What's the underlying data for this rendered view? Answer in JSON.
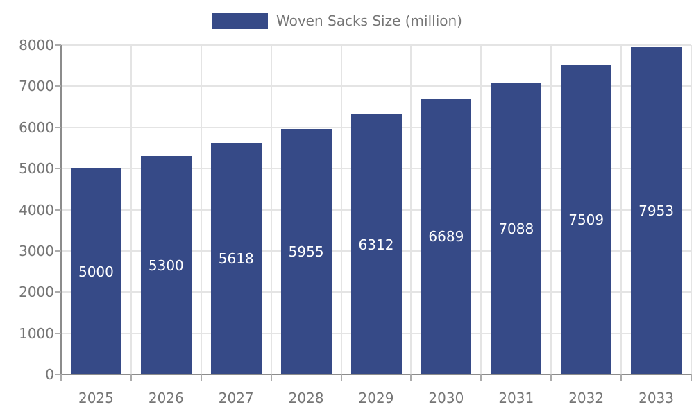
{
  "legend": {
    "label": "Woven Sacks Size (million)"
  },
  "chart_data": {
    "type": "bar",
    "title": "",
    "series_name": "Woven Sacks Size (million)",
    "categories": [
      "2025",
      "2026",
      "2027",
      "2028",
      "2029",
      "2030",
      "2031",
      "2032",
      "2033"
    ],
    "values": [
      5000,
      5300,
      5618,
      5955,
      6312,
      6689,
      7088,
      7509,
      7953
    ],
    "value_labels": [
      "5000",
      "5300",
      "5618",
      "5955",
      "6312",
      "6689",
      "7088",
      "7509",
      "7953"
    ],
    "xlabel": "",
    "ylabel": "",
    "ylim": [
      0,
      8000
    ],
    "yticks": [
      0,
      1000,
      2000,
      3000,
      4000,
      5000,
      6000,
      7000,
      8000
    ],
    "grid": true,
    "legend_position": "top-center",
    "value_label_position": "center-of-bar",
    "colors": {
      "bar": "#364a87",
      "value_label": "#ffffff",
      "axis": "#8c8c8c",
      "tick": "#ababab",
      "gridline": "#e4e4e4",
      "label_text": "#757575",
      "background": "#ffffff"
    }
  }
}
